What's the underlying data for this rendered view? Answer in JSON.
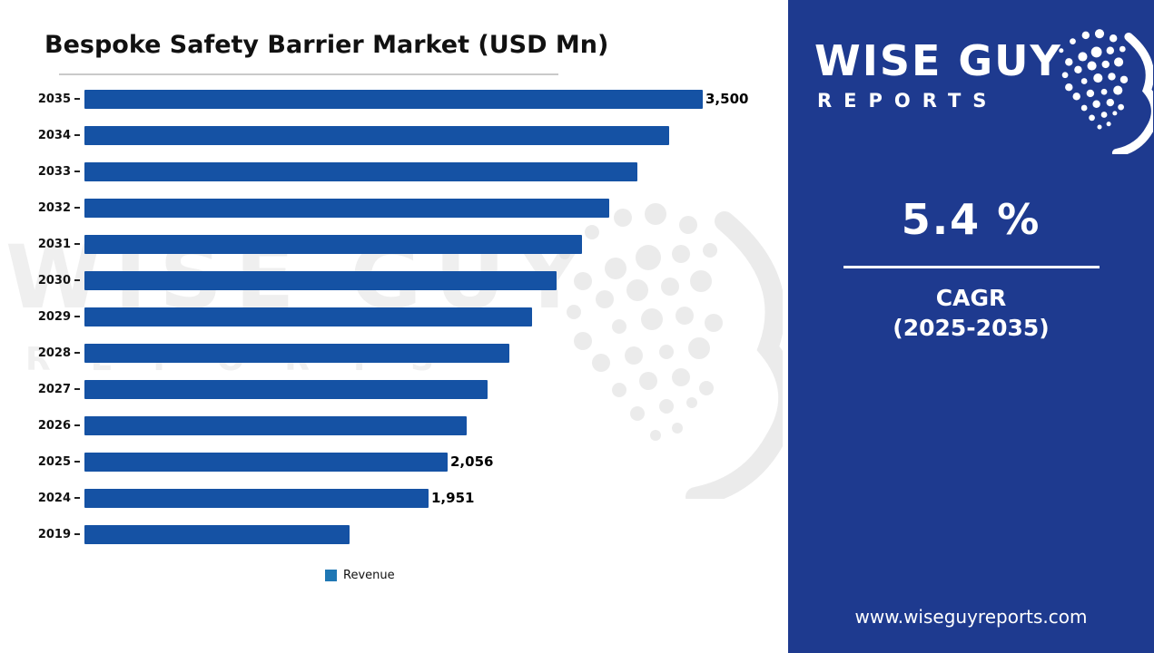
{
  "chart": {
    "title": "Bespoke Safety Barrier Market (USD Mn)",
    "legend_label": "Revenue"
  },
  "chart_data": {
    "type": "bar",
    "orientation": "horizontal",
    "title": "Bespoke Safety Barrier Market (USD Mn)",
    "xlabel": "",
    "ylabel": "",
    "categories": [
      "2035",
      "2034",
      "2033",
      "2032",
      "2031",
      "2030",
      "2029",
      "2028",
      "2027",
      "2026",
      "2025",
      "2024",
      "2019"
    ],
    "values": [
      3500,
      3311,
      3131,
      2971,
      2819,
      2674,
      2537,
      2407,
      2284,
      2167,
      2056,
      1951,
      1500
    ],
    "data_labels": {
      "2035": "3,500",
      "2025": "2,056",
      "2024": "1,951"
    },
    "xlim": [
      0,
      3600
    ],
    "grid": false,
    "legend": [
      "Revenue"
    ],
    "legend_position": "bottom",
    "bar_color": "#1552a4",
    "legend_marker_color": "#1f77b4"
  },
  "sidebar": {
    "background_color": "#1e3a8f",
    "logo_line1": "WISE GUY",
    "logo_line2": "REPORTS",
    "cagr_value": "5.4 %",
    "cagr_label_line1": "CAGR",
    "cagr_label_line2": "(2025-2035)",
    "website": "www.wiseguyreports.com"
  },
  "watermark": {
    "line1": "WISE GUY",
    "line2": "REPORTS"
  }
}
